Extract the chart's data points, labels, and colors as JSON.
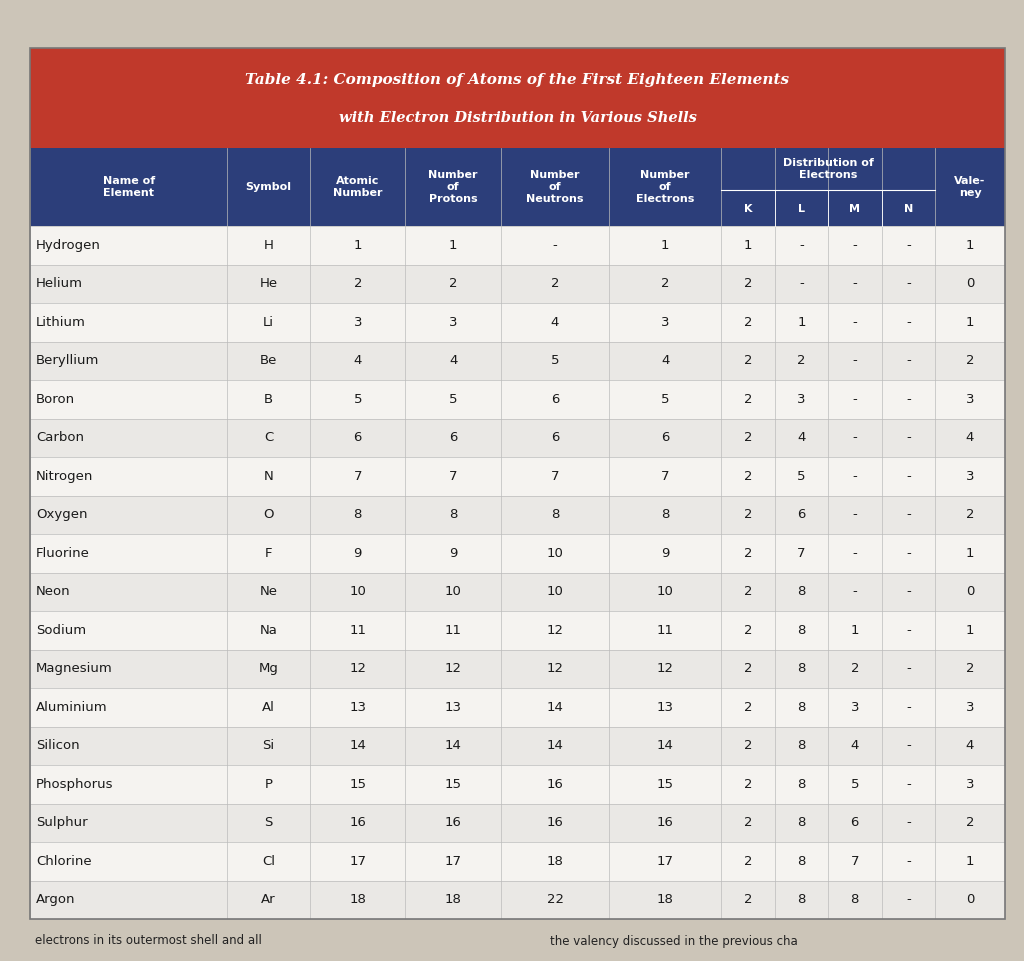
{
  "title_line1": "Table 4.1: Composition of Atoms of the First Eighteen Elements",
  "title_line2": "with Electron Distribution in Various Shells",
  "title_bg_color": "#c0392b",
  "header_bg_color": "#2c3e7a",
  "header_text_color": "#ffffff",
  "data_text_color": "#1a1a1a",
  "row_bg_even": "#f5f3f0",
  "row_bg_odd": "#eae8e5",
  "grid_color": "#bbbbbb",
  "figure_bg": "#ccc5b8",
  "distribution_header": "Distribution of\nElectrons",
  "col_headers": [
    "Name of\nElement",
    "Symbol",
    "Atomic\nNumber",
    "Number\nof\nProtons",
    "Number\nof\nNeutrons",
    "Number\nof\nElectrons",
    "K",
    "L",
    "M",
    "N",
    "Vale-\nney"
  ],
  "rows": [
    [
      "Hydrogen",
      "H",
      "1",
      "1",
      "-",
      "1",
      "1",
      "-",
      "-",
      "-",
      "1"
    ],
    [
      "Helium",
      "He",
      "2",
      "2",
      "2",
      "2",
      "2",
      "-",
      "-",
      "-",
      "0"
    ],
    [
      "Lithium",
      "Li",
      "3",
      "3",
      "4",
      "3",
      "2",
      "1",
      "-",
      "-",
      "1"
    ],
    [
      "Beryllium",
      "Be",
      "4",
      "4",
      "5",
      "4",
      "2",
      "2",
      "-",
      "-",
      "2"
    ],
    [
      "Boron",
      "B",
      "5",
      "5",
      "6",
      "5",
      "2",
      "3",
      "-",
      "-",
      "3"
    ],
    [
      "Carbon",
      "C",
      "6",
      "6",
      "6",
      "6",
      "2",
      "4",
      "-",
      "-",
      "4"
    ],
    [
      "Nitrogen",
      "N",
      "7",
      "7",
      "7",
      "7",
      "2",
      "5",
      "-",
      "-",
      "3"
    ],
    [
      "Oxygen",
      "O",
      "8",
      "8",
      "8",
      "8",
      "2",
      "6",
      "-",
      "-",
      "2"
    ],
    [
      "Fluorine",
      "F",
      "9",
      "9",
      "10",
      "9",
      "2",
      "7",
      "-",
      "-",
      "1"
    ],
    [
      "Neon",
      "Ne",
      "10",
      "10",
      "10",
      "10",
      "2",
      "8",
      "-",
      "-",
      "0"
    ],
    [
      "Sodium",
      "Na",
      "11",
      "11",
      "12",
      "11",
      "2",
      "8",
      "1",
      "-",
      "1"
    ],
    [
      "Magnesium",
      "Mg",
      "12",
      "12",
      "12",
      "12",
      "2",
      "8",
      "2",
      "-",
      "2"
    ],
    [
      "Aluminium",
      "Al",
      "13",
      "13",
      "14",
      "13",
      "2",
      "8",
      "3",
      "-",
      "3"
    ],
    [
      "Silicon",
      "Si",
      "14",
      "14",
      "14",
      "14",
      "2",
      "8",
      "4",
      "-",
      "4"
    ],
    [
      "Phosphorus",
      "P",
      "15",
      "15",
      "16",
      "15",
      "2",
      "8",
      "5",
      "-",
      "3"
    ],
    [
      "Sulphur",
      "S",
      "16",
      "16",
      "16",
      "16",
      "2",
      "8",
      "6",
      "-",
      "2"
    ],
    [
      "Chlorine",
      "Cl",
      "17",
      "17",
      "18",
      "17",
      "2",
      "8",
      "7",
      "-",
      "1"
    ],
    [
      "Argon",
      "Ar",
      "18",
      "18",
      "22",
      "18",
      "2",
      "8",
      "8",
      "-",
      "0"
    ]
  ],
  "col_widths": [
    1.55,
    0.65,
    0.75,
    0.75,
    0.85,
    0.88,
    0.42,
    0.42,
    0.42,
    0.42,
    0.55
  ],
  "footer_left": "electrons in its outermost shell and all",
  "footer_right": "the valency discussed in the previous cha",
  "title_fontsize": 11.0,
  "header_fontsize": 8.0,
  "data_fontsize": 9.5,
  "footer_fontsize": 8.5
}
